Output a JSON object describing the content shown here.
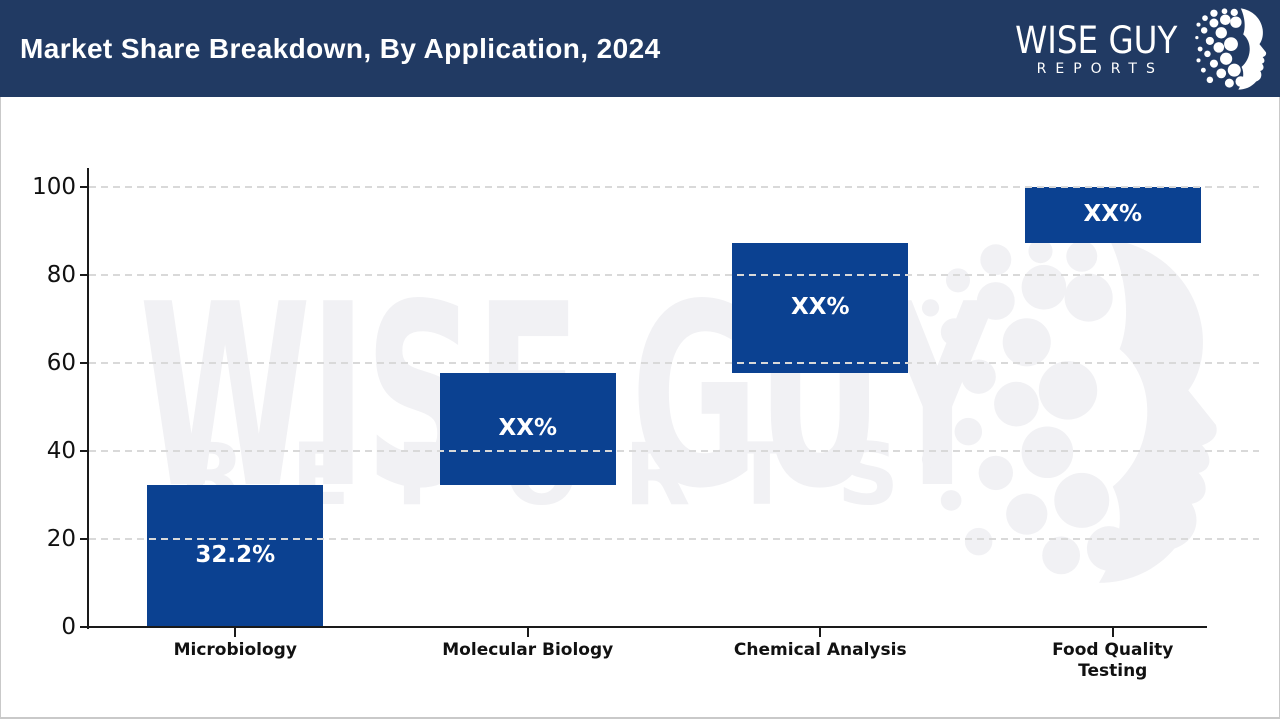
{
  "header": {
    "title": "Market Share Breakdown, By Application, 2024",
    "logo": {
      "line1": "WISE GUY",
      "line2": "REPORTS"
    }
  },
  "watermark": {
    "line1": "WISE GUY",
    "line2": "REPORTS"
  },
  "icons": {
    "logo_face": "wiseguy-dotted-face",
    "watermark_face": "wiseguy-dotted-face"
  },
  "colors": {
    "header_bg": "#213a63",
    "bar": "#0b4191",
    "grid": "#d9d9d9",
    "axis": "#1a1a1a",
    "watermark": "#f1f1f4",
    "frame_border": "#c9c9c9",
    "value_label": "#ffffff"
  },
  "chart_data": {
    "type": "bar",
    "subtype": "waterfall",
    "title": "Market Share Breakdown, By Application, 2024",
    "categories": [
      "Microbiology",
      "Molecular Biology",
      "Chemical Analysis",
      "Food Quality\nTesting"
    ],
    "bars": [
      {
        "category": "Microbiology",
        "start": 0,
        "end": 32.2,
        "value_label": "32.2%"
      },
      {
        "category": "Molecular Biology",
        "start": 32.2,
        "end": 57.8,
        "value_label": "XX%"
      },
      {
        "category": "Chemical Analysis",
        "start": 57.8,
        "end": 87.3,
        "value_label": "XX%"
      },
      {
        "category": "Food Quality\nTesting",
        "start": 87.3,
        "end": 100,
        "value_label": "XX%"
      }
    ],
    "ylim": [
      0,
      100
    ],
    "yticks": [
      0,
      20,
      40,
      60,
      80,
      100
    ],
    "xlabel": "",
    "ylabel": "",
    "grid": "horizontal-dashed",
    "legend": "none",
    "bar_color": "#0b4191",
    "value_label_color": "#ffffff"
  }
}
